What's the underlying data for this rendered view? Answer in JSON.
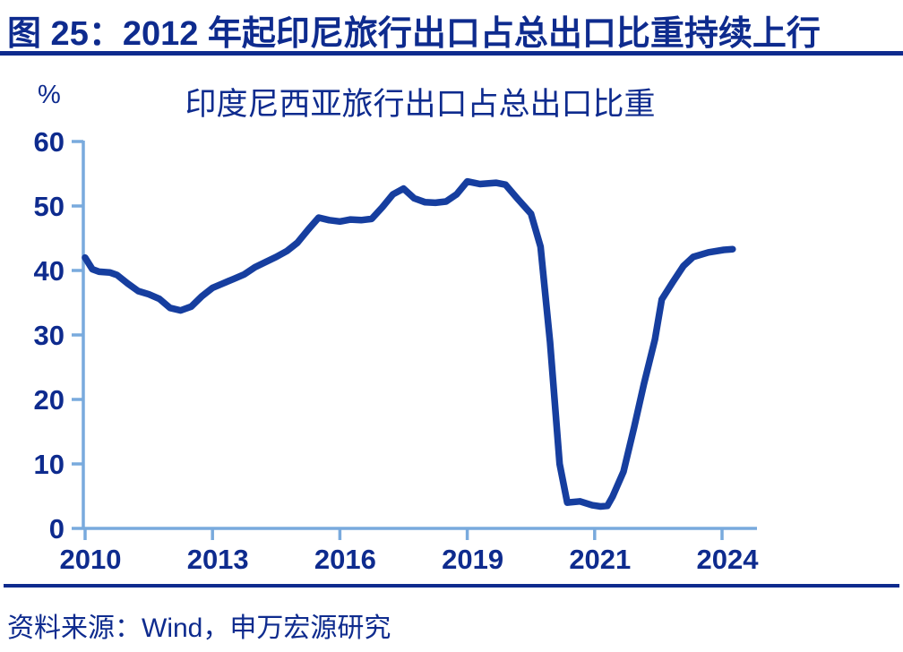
{
  "page": {
    "background": "#ffffff"
  },
  "header": {
    "title": "图 25：2012 年起印尼旅行出口占总出口比重持续上行"
  },
  "footer": {
    "source": "资料来源：Wind，申万宏源研究"
  },
  "colors": {
    "navy_text": "#0e2b8e",
    "line_navy": "#163e9f",
    "axis_light_blue": "#79aadd"
  },
  "chart_data": {
    "type": "line",
    "title": "印度尼西亚旅行出口占总出口比重",
    "ylabel": "%",
    "xlabel": "",
    "ylim": [
      0,
      60
    ],
    "yticks": [
      0,
      10,
      20,
      30,
      40,
      50,
      60
    ],
    "xtick_labels": [
      "2010",
      "2013",
      "2016",
      "2019",
      "2021",
      "2024"
    ],
    "xtick_years": [
      2010,
      2013,
      2016,
      2019,
      2021,
      2024
    ],
    "grid": false,
    "legend_position": "none",
    "axis_note": "x ticks evenly spaced although year intervals are uneven (3,3,3,2,3)",
    "series": [
      {
        "name": "印度尼西亚旅行出口占总出口比重",
        "color": "#163e9f",
        "points": [
          [
            2010.0,
            42.0
          ],
          [
            2010.17,
            40.2
          ],
          [
            2010.33,
            39.8
          ],
          [
            2010.58,
            39.7
          ],
          [
            2010.75,
            39.3
          ],
          [
            2011.0,
            38.0
          ],
          [
            2011.25,
            36.8
          ],
          [
            2011.5,
            36.3
          ],
          [
            2011.75,
            35.6
          ],
          [
            2012.0,
            34.2
          ],
          [
            2012.25,
            33.8
          ],
          [
            2012.5,
            34.4
          ],
          [
            2012.75,
            36.0
          ],
          [
            2013.0,
            37.3
          ],
          [
            2013.25,
            38.0
          ],
          [
            2013.5,
            38.7
          ],
          [
            2013.75,
            39.4
          ],
          [
            2014.0,
            40.5
          ],
          [
            2014.25,
            41.3
          ],
          [
            2014.5,
            42.1
          ],
          [
            2014.75,
            43.0
          ],
          [
            2015.0,
            44.3
          ],
          [
            2015.25,
            46.3
          ],
          [
            2015.5,
            48.2
          ],
          [
            2015.75,
            47.8
          ],
          [
            2016.0,
            47.6
          ],
          [
            2016.25,
            47.9
          ],
          [
            2016.5,
            47.8
          ],
          [
            2016.75,
            48.0
          ],
          [
            2017.0,
            49.8
          ],
          [
            2017.25,
            51.8
          ],
          [
            2017.5,
            52.7
          ],
          [
            2017.75,
            51.2
          ],
          [
            2018.0,
            50.6
          ],
          [
            2018.25,
            50.5
          ],
          [
            2018.5,
            50.7
          ],
          [
            2018.75,
            51.8
          ],
          [
            2019.0,
            53.8
          ],
          [
            2019.2,
            53.4
          ],
          [
            2019.45,
            53.6
          ],
          [
            2019.6,
            53.3
          ],
          [
            2019.8,
            51.0
          ],
          [
            2020.0,
            48.8
          ],
          [
            2020.15,
            43.7
          ],
          [
            2020.3,
            28.9
          ],
          [
            2020.45,
            10.0
          ],
          [
            2020.57,
            4.0
          ],
          [
            2020.77,
            4.2
          ],
          [
            2020.96,
            3.6
          ],
          [
            2021.14,
            3.4
          ],
          [
            2021.3,
            3.5
          ],
          [
            2021.42,
            4.9
          ],
          [
            2021.68,
            8.8
          ],
          [
            2021.93,
            15.7
          ],
          [
            2022.16,
            22.4
          ],
          [
            2022.42,
            29.3
          ],
          [
            2022.58,
            35.5
          ],
          [
            2022.84,
            38.2
          ],
          [
            2023.09,
            40.7
          ],
          [
            2023.32,
            42.1
          ],
          [
            2023.68,
            42.8
          ],
          [
            2024.04,
            43.2
          ],
          [
            2024.25,
            43.3
          ]
        ]
      }
    ]
  }
}
